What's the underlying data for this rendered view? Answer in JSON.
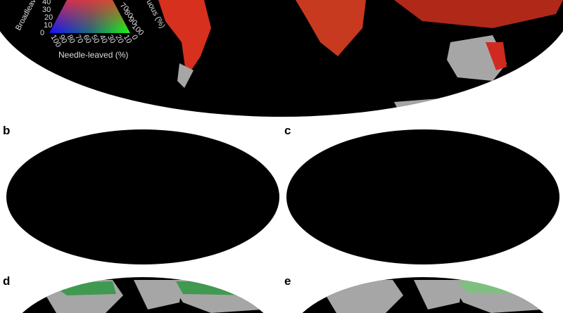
{
  "panels": [
    {
      "label": "b"
    },
    {
      "label": "c"
    },
    {
      "label": "d"
    },
    {
      "label": "e"
    }
  ],
  "legend": {
    "left_axis_title": "Broadleav",
    "right_axis_title": "uous (%)",
    "bottom_axis_title": "Needle-leaved (%)",
    "left_ticks": [
      "40",
      "30",
      "20",
      "10",
      "0"
    ],
    "right_ticks": [
      "70",
      "80",
      "90",
      "100"
    ],
    "bottom_ticks": [
      "100",
      "90",
      "80",
      "70",
      "60",
      "50",
      "40",
      "30",
      "20",
      "10",
      "0"
    ],
    "colors": {
      "broadleaved": "#0000ff",
      "needle_leaved": "#00e000",
      "deciduous": "#ff0000"
    }
  },
  "colors": {
    "ocean": "#000000",
    "no_data_land": "#a6a6a6",
    "forest_green": "#2e8b40",
    "light_forest": "#f4f6c0"
  }
}
